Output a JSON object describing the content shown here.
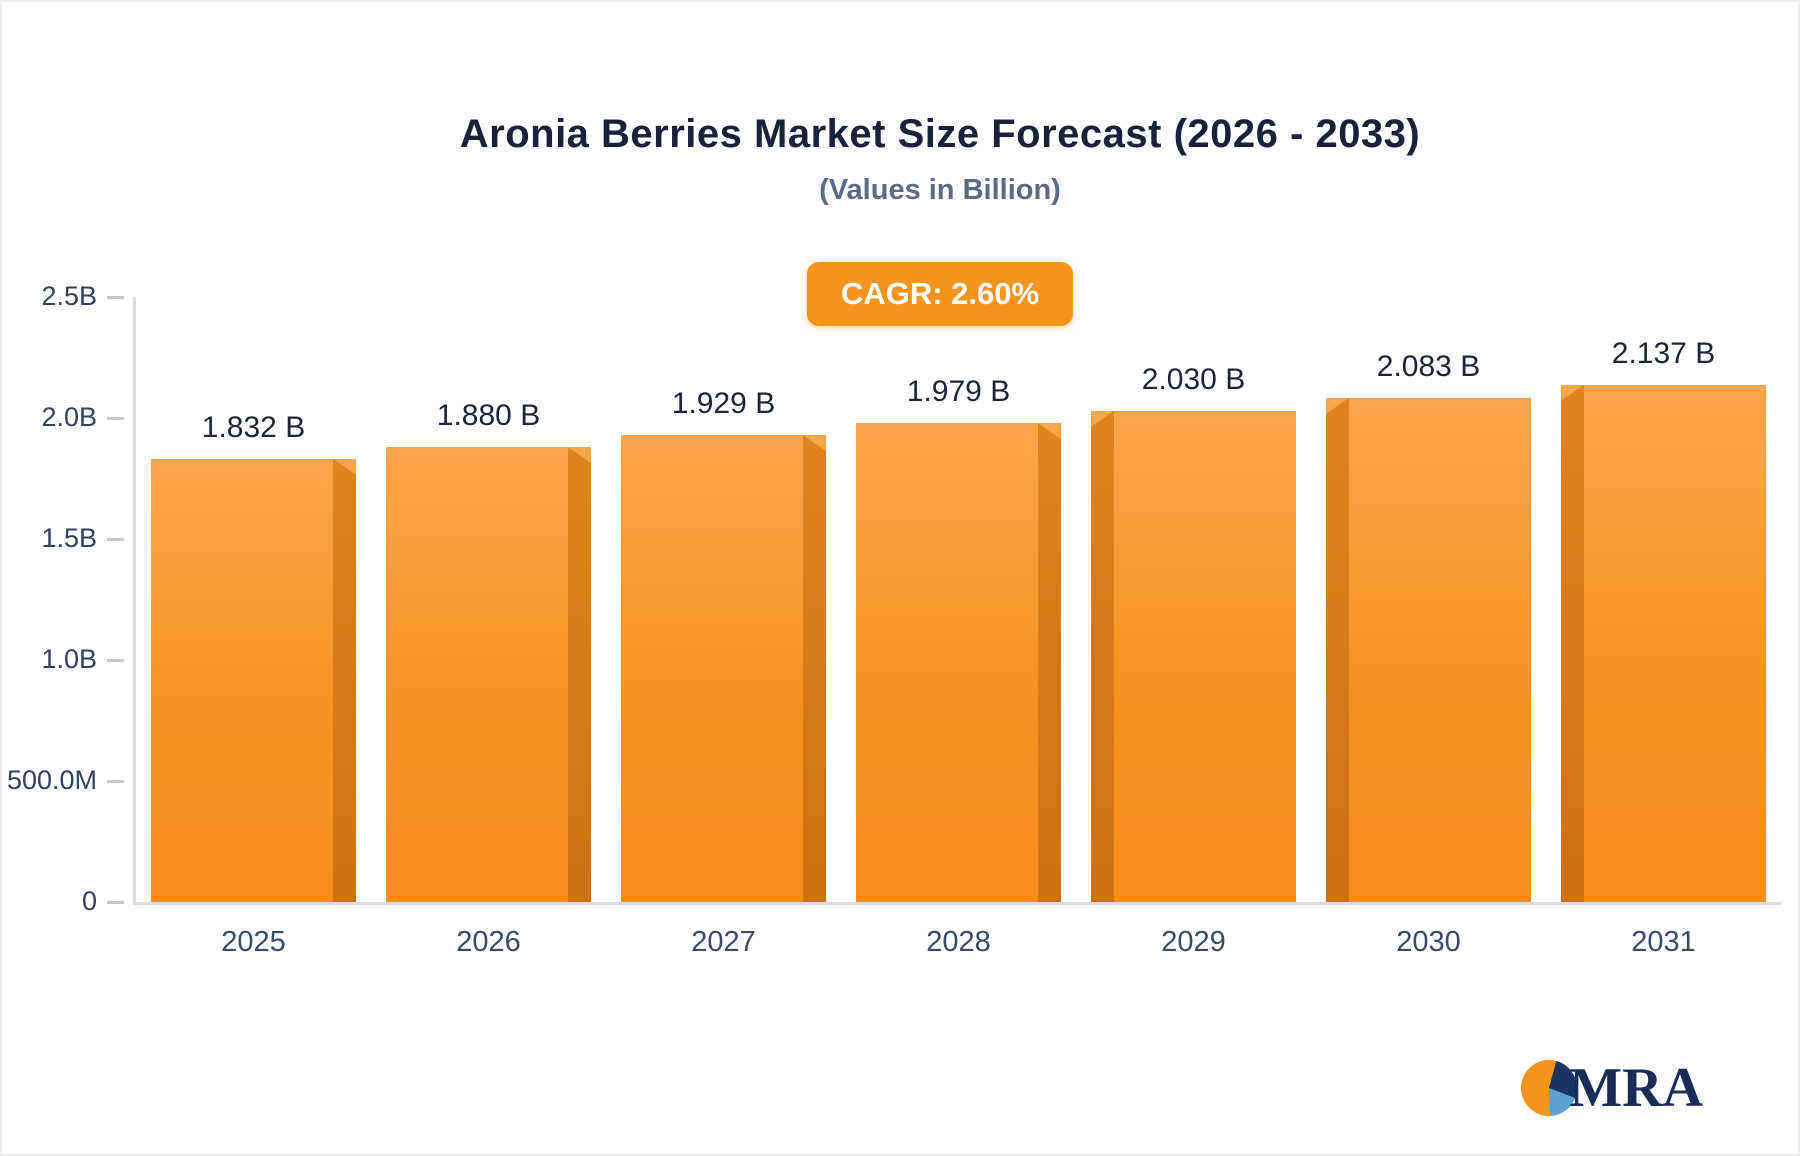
{
  "chart_data": {
    "type": "bar",
    "title": "Aronia Berries Market Size Forecast (2026 - 2033)",
    "subtitle": "(Values in Billion)",
    "annotation": "CAGR: 2.60%",
    "unit": "Billion",
    "categories": [
      "2025",
      "2026",
      "2027",
      "2028",
      "2029",
      "2030",
      "2031"
    ],
    "values": [
      1.832,
      1.88,
      1.929,
      1.979,
      2.03,
      2.083,
      2.137
    ],
    "value_labels": [
      "1.832 B",
      "1.880 B",
      "1.929 B",
      "1.979 B",
      "2.030 B",
      "2.083 B",
      "2.137 B"
    ],
    "xlabel": "",
    "ylabel": "",
    "ylim": [
      0,
      2.5
    ],
    "y_ticks": [
      {
        "label": "2.5B",
        "value": 2.5
      },
      {
        "label": "2.0B",
        "value": 2.0
      },
      {
        "label": "1.5B",
        "value": 1.5
      },
      {
        "label": "1.0B",
        "value": 1.0
      },
      {
        "label": "500.0M",
        "value": 0.5
      },
      {
        "label": "0",
        "value": 0
      }
    ],
    "grid": false,
    "legend": false,
    "bar_color": "#F7941E",
    "bar_side_color": "#CD7013",
    "badge_color": "#F7941E",
    "axis_color": "#D8DCE1"
  },
  "logo": {
    "text": "MRA",
    "icon_colors": [
      "#F7941E",
      "#1C3664",
      "#5BA0CF"
    ]
  }
}
